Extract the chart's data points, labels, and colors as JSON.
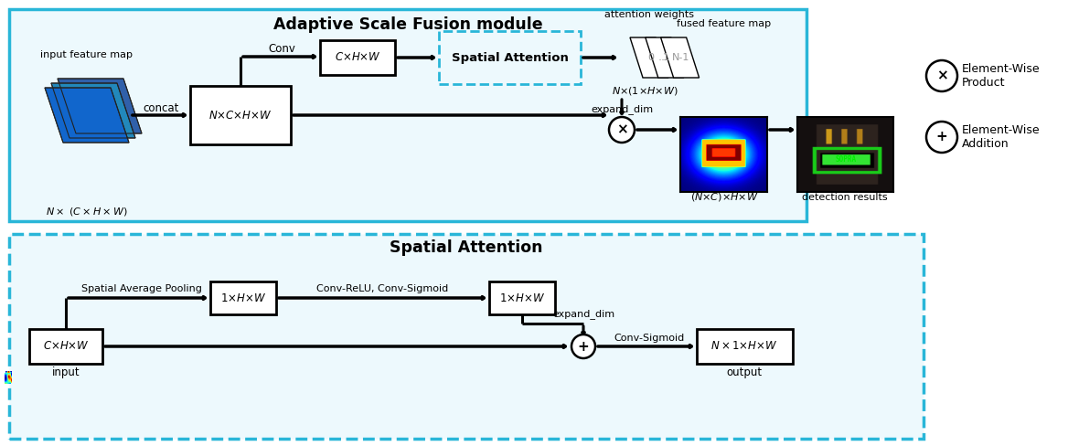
{
  "title_top": "Adaptive Scale Fusion module",
  "title_bottom": "Spatial Attention",
  "border_color_solid": "#29b6d8",
  "border_color_dashed": "#29b6d8",
  "bg_top": "#edf9fd",
  "bg_bot": "#edf9fd",
  "legend_x": "Element-Wise\nProduct",
  "legend_plus": "Element-Wise\nAddition"
}
